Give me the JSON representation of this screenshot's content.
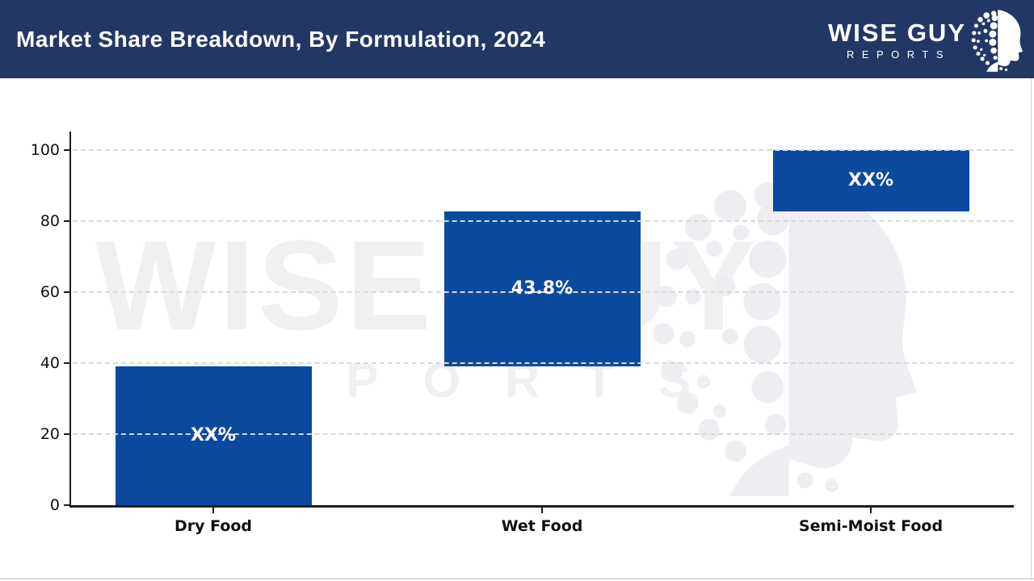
{
  "header": {
    "title": "Market Share Breakdown, By Formulation, 2024",
    "logo": {
      "line1": "WISE GUY",
      "line2": "REPORTS"
    }
  },
  "watermark": {
    "line1": "WISE GUY",
    "line2": "REPORTS"
  },
  "colors": {
    "header_bg": "#223864",
    "bar": "#0b4a9e",
    "grid": "#d8d8d8",
    "axis": "#1c1c1c",
    "bar_label_text": "#ffffff",
    "watermark_gray": "#f0f0f3"
  },
  "chart_data": {
    "type": "bar",
    "subtype": "stacked-waterfall",
    "title": "Market Share Breakdown, By Formulation, 2024",
    "categories": [
      "Dry Food",
      "Wet Food",
      "Semi-Moist Food"
    ],
    "segments": [
      {
        "category": "Dry Food",
        "start": 0,
        "end": 39,
        "value": 39,
        "value_label": "XX%"
      },
      {
        "category": "Wet Food",
        "start": 39,
        "end": 82.8,
        "value": 43.8,
        "value_label": "43.8%"
      },
      {
        "category": "Semi-Moist Food",
        "start": 82.8,
        "end": 100,
        "value": 17.2,
        "value_label": "XX%"
      }
    ],
    "yticks": [
      0,
      20,
      40,
      60,
      80,
      100
    ],
    "ylim": [
      0,
      100
    ],
    "xlabel": "",
    "ylabel": "",
    "grid": "horizontal-dashed",
    "legend": "none",
    "bar_color": "#0b4a9e"
  }
}
